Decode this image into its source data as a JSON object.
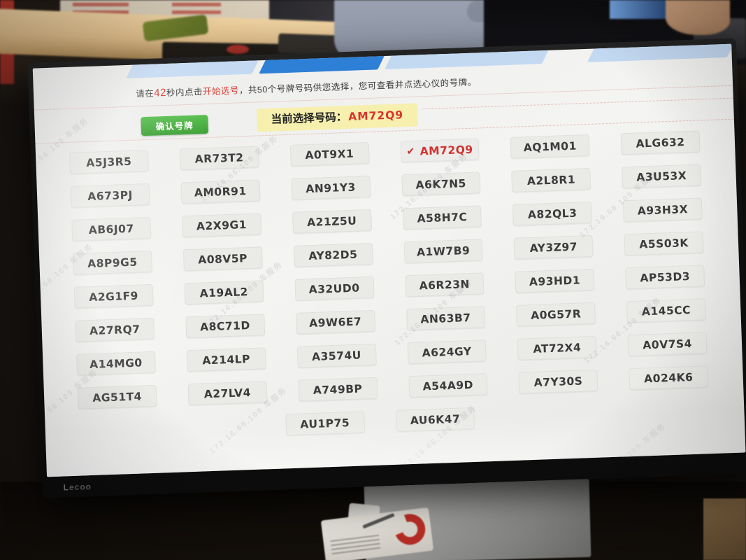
{
  "colors": {
    "accent_blue": "#2e7fd6",
    "step_inactive_blue": "#c3d9f2",
    "confirm_green": "#379e2e",
    "selection_yellow_bg": "#f6efae",
    "alert_red": "#d9342b",
    "plate_text": "#3b3b3b"
  },
  "monitor": {
    "brand": "Lecoo"
  },
  "screen": {
    "stepper_segments": [
      {
        "active": false
      },
      {
        "active": true
      },
      {
        "active": false
      },
      {
        "active": false
      }
    ],
    "notice": {
      "part1": "请在",
      "countdown": "42",
      "part2": "秒内点击",
      "link": "开始选号",
      "part3": "，共50个号牌号码供您选择，您可查看并点选心仪的号牌。"
    },
    "confirm_button_label": "确认号牌",
    "selection_banner": {
      "label": "当前选择号码：",
      "value": "AM72Q9"
    },
    "check_icon": "✔",
    "selected_plate": "AM72Q9",
    "plates": [
      "A5J3R5",
      "AR73T2",
      "A0T9X1",
      "AM72Q9",
      "AQ1M01",
      "ALG632",
      "A673PJ",
      "AM0R91",
      "AN91Y3",
      "A6K7N5",
      "A2L8R1",
      "A3U53X",
      "AB6J07",
      "A2X9G1",
      "A21Z5U",
      "A58H7C",
      "A82QL3",
      "A93H3X",
      "A8P9G5",
      "A08V5P",
      "AY82D5",
      "A1W7B9",
      "AY3Z97",
      "A5S03K",
      "A2G1F9",
      "A19AL2",
      "A32UD0",
      "A6R23N",
      "A93HD1",
      "AP53D3",
      "A27RQ7",
      "A8C71D",
      "A9W6E7",
      "AN63B7",
      "A0G57R",
      "A145CC",
      "A14MG0",
      "A214LP",
      "A3574U",
      "A624GY",
      "AT72X4",
      "A0V7S4",
      "AG51T4",
      "A27LV4",
      "A749BP",
      "A54A9D",
      "A7Y30S",
      "A024K6",
      "AU1P75",
      "AU6K47"
    ],
    "watermark_lines": [
      "172.16.66.109",
      "车服务"
    ]
  }
}
